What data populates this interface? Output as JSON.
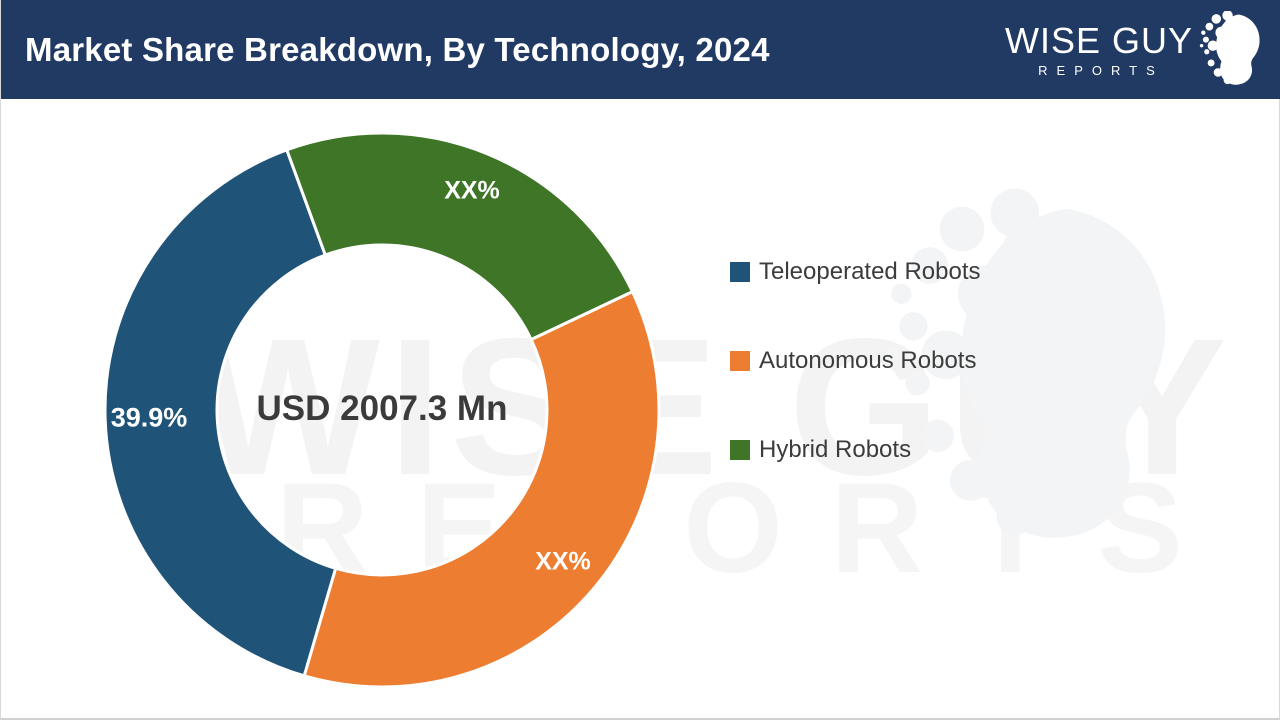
{
  "header": {
    "title": "Market Share Breakdown, By Technology, 2024",
    "logo": {
      "name": "WISE GUY",
      "sub": "REPORTS"
    }
  },
  "watermark": {
    "big": "WISE GUY",
    "sub": "REPORTS"
  },
  "chart_data": {
    "type": "pie",
    "subtype": "donut",
    "title": "Market Share Breakdown, By Technology, 2024",
    "center_label": "USD 2007.3 Mn",
    "legend_position": "right",
    "slices": [
      {
        "id": "teleoperated-robots",
        "label": "Teleoperated Robots",
        "display_value": "39.9%",
        "pct": 39.9,
        "color": "#1F5377",
        "start_deg": 110.1,
        "end_deg": 253.7
      },
      {
        "id": "autonomous-robots",
        "label": "Autonomous Robots",
        "display_value": "XX%",
        "pct": 36.6,
        "color": "#ED7D31",
        "start_deg": 253.7,
        "end_deg": 385.3
      },
      {
        "id": "hybrid-robots",
        "label": "Hybrid Robots",
        "display_value": "XX%",
        "pct": 23.5,
        "color": "#3E7527",
        "start_deg": 25.3,
        "end_deg": 110.1
      }
    ],
    "colors": {
      "header_bg": "#213A64",
      "watermark": "#f3f3f3",
      "label_text": "#ffffff",
      "center_text": "#3b3b3b",
      "legend_text": "#3c3c3c"
    }
  }
}
